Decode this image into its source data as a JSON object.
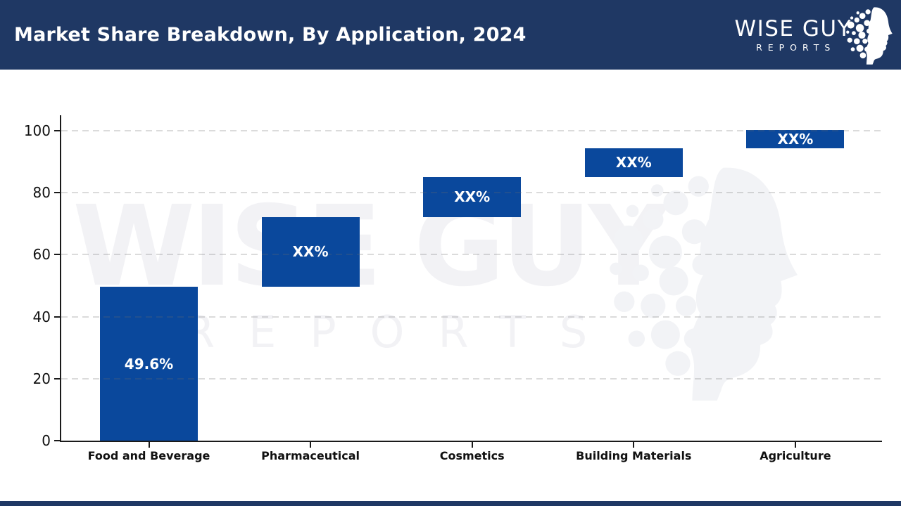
{
  "header": {
    "title": "Market Share Breakdown, By Application, 2024",
    "brand": {
      "line1": "WISE GUY",
      "line2": "REPORTS"
    }
  },
  "watermark": {
    "line1": "WISE GUY",
    "line2": "REPORTS"
  },
  "colors": {
    "header_bg": "#1F3864",
    "footer_bg": "#1F3864",
    "bar": "#0A489C",
    "bar_label": "#FFFFFF",
    "axis": "#1A1A1A",
    "grid": "#D9D9D9",
    "watermark": "#F2F2F5"
  },
  "chart_data": {
    "type": "bar",
    "subtype": "waterfall",
    "title": "Market Share Breakdown, By Application, 2024",
    "categories": [
      "Food and Beverage",
      "Pharmaceutical",
      "Cosmetics",
      "Building Materials",
      "Agriculture"
    ],
    "segments": [
      {
        "category": "Food and Beverage",
        "label": "49.6%",
        "start": 0,
        "end": 49.6
      },
      {
        "category": "Pharmaceutical",
        "label": "XX%",
        "start": 49.6,
        "end": 72.2
      },
      {
        "category": "Cosmetics",
        "label": "XX%",
        "start": 72.2,
        "end": 85.1
      },
      {
        "category": "Building Materials",
        "label": "XX%",
        "start": 85.1,
        "end": 94.4
      },
      {
        "category": "Agriculture",
        "label": "XX%",
        "start": 94.4,
        "end": 100.2
      }
    ],
    "yticks": [
      0,
      20,
      40,
      60,
      80,
      100
    ],
    "ylim": [
      0,
      105
    ],
    "xlabel": "",
    "ylabel": "",
    "grid": "horizontal dashed",
    "legend": "none"
  }
}
